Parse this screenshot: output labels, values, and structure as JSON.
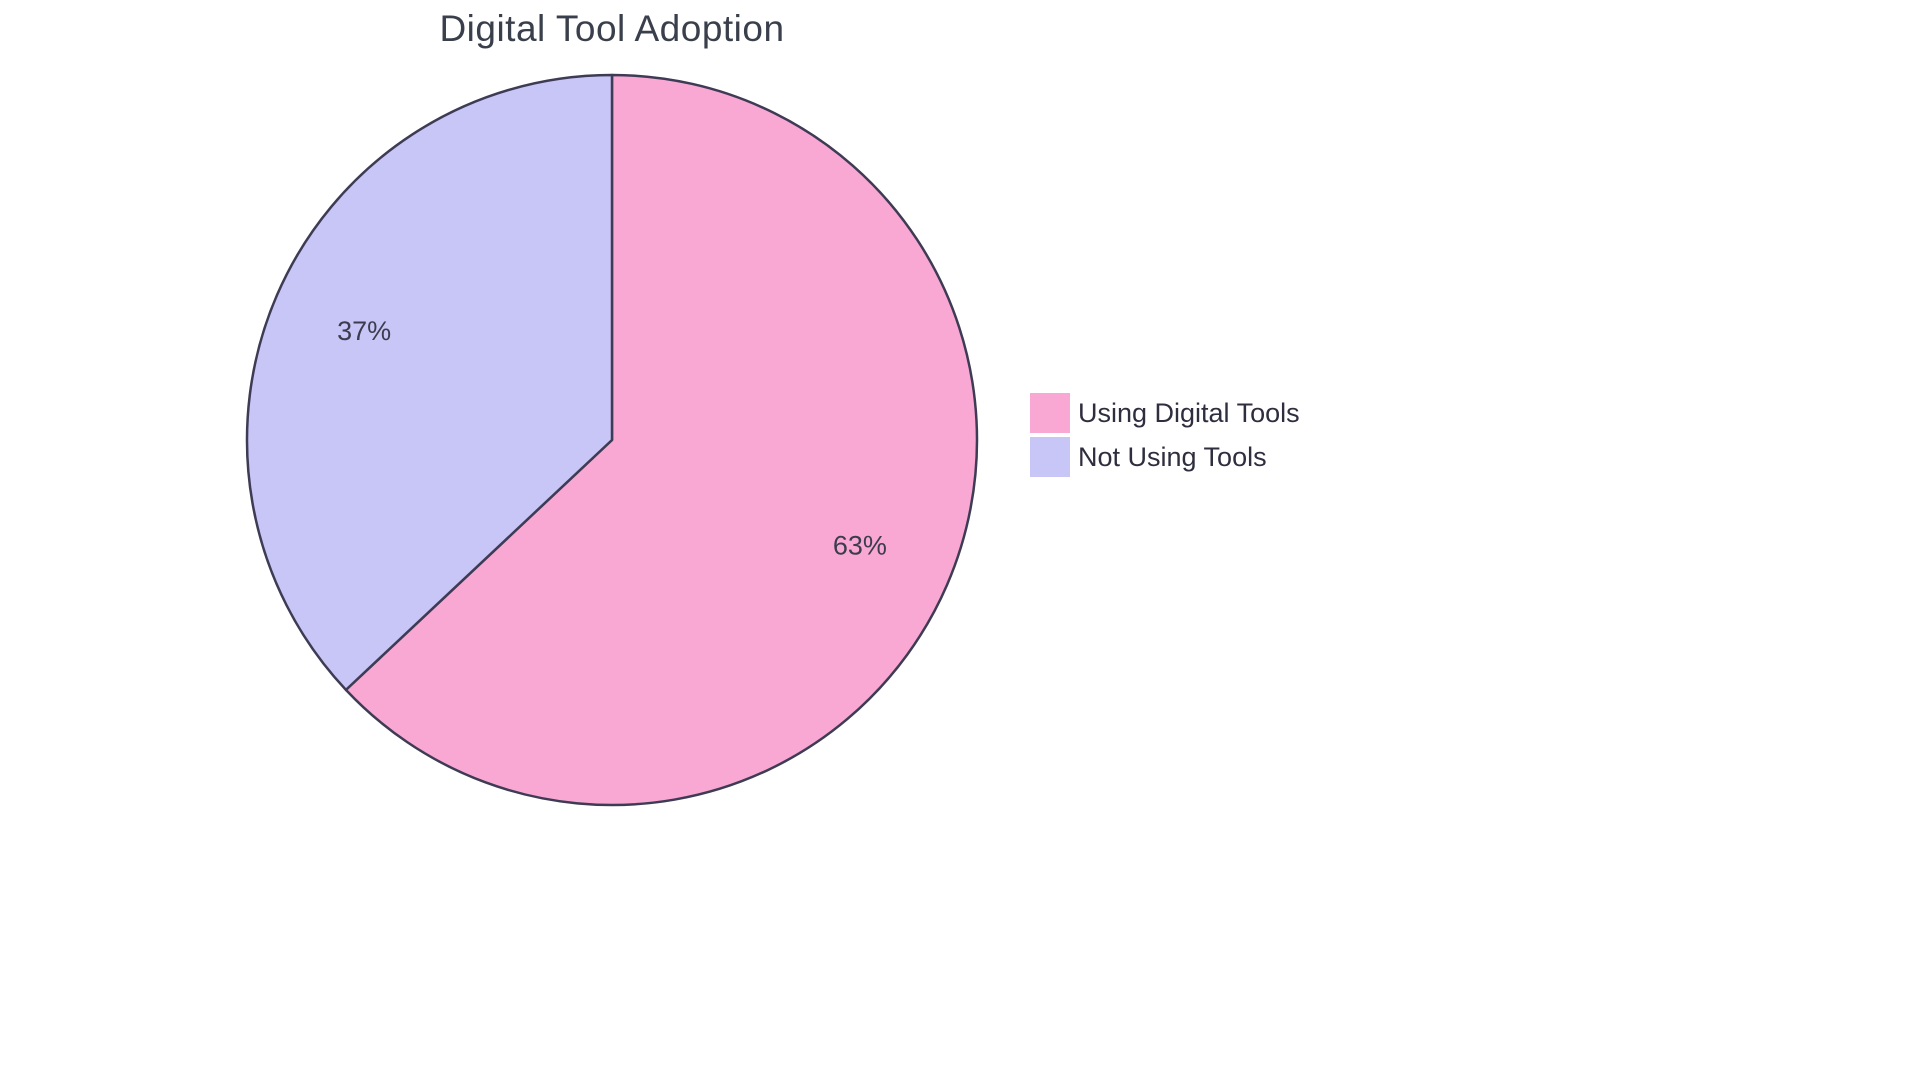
{
  "chart_data": {
    "type": "pie",
    "title": "Digital Tool Adoption",
    "labels": [
      "Using Digital Tools",
      "Not Using Tools"
    ],
    "values": [
      63,
      37
    ],
    "slice_labels": [
      "63%",
      "37%"
    ],
    "colors": [
      "#F9A8D4",
      "#C8C5F7"
    ],
    "stroke_color": "#3E3B54",
    "stroke_width": 2.5,
    "start_angle_deg": -90,
    "direction": "clockwise",
    "legend_position": "right",
    "label_radius_fraction": 0.74
  }
}
